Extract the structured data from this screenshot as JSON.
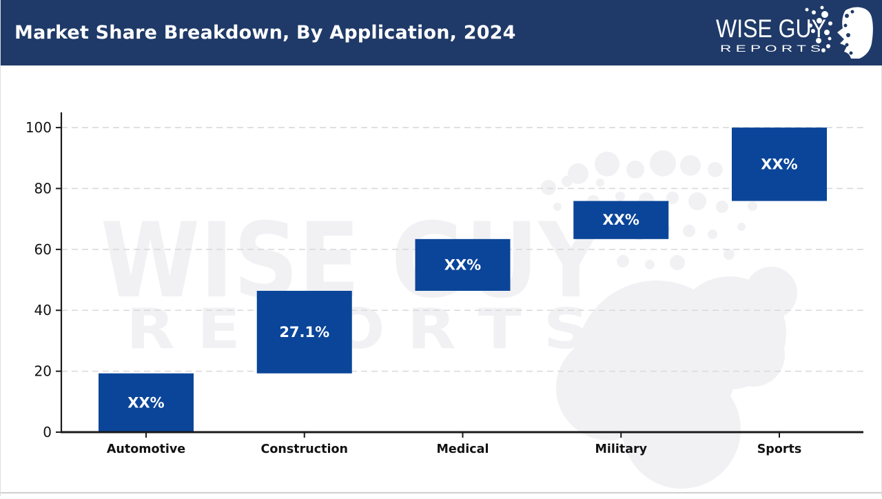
{
  "header": {
    "title": "Market Share Breakdown, By Application, 2024",
    "title_color": "#ffffff",
    "background": "#1f3a68",
    "logo": {
      "name": "WISE GUY",
      "subname": "R E P O R T S",
      "color": "#ffffff"
    }
  },
  "watermark": {
    "line1": "WISE GUY",
    "line2": "R E P O R T S",
    "color": "#f1f1f4"
  },
  "chart_data": {
    "type": "bar",
    "subtype": "waterfall",
    "title": "Market Share Breakdown, By Application, 2024",
    "categories": [
      "Automotive",
      "Construction",
      "Medical",
      "Military",
      "Sports"
    ],
    "values": [
      19.3,
      27.1,
      17.0,
      12.5,
      24.1
    ],
    "bar_labels": [
      "XX%",
      "27.1%",
      "XX%",
      "XX%",
      "XX%"
    ],
    "ylim": [
      0,
      105
    ],
    "yticks": [
      0,
      20,
      40,
      60,
      80,
      100
    ],
    "xlabel": "",
    "ylabel": "",
    "grid": true,
    "grid_style": "dashed",
    "legend": false,
    "colors": {
      "bar": "#0a4599",
      "bar_label": "#ffffff",
      "grid": "#d9d9d9",
      "axis": "#1a1a1a",
      "tick_label": "#111111"
    }
  }
}
